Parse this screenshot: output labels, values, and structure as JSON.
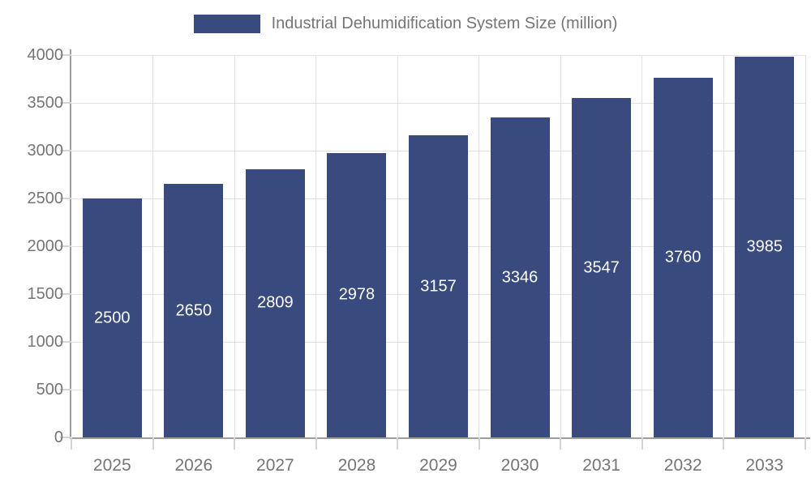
{
  "chart_data": {
    "type": "bar",
    "title": "Industrial Dehumidification System Size (million)",
    "legend_label": "Industrial Dehumidification System Size (million)",
    "legend_position": "top",
    "categories": [
      "2025",
      "2026",
      "2027",
      "2028",
      "2029",
      "2030",
      "2031",
      "2032",
      "2033"
    ],
    "values": [
      2500,
      2650,
      2809,
      2978,
      3157,
      3346,
      3547,
      3760,
      3985
    ],
    "xlabel": "",
    "ylabel": "",
    "ylim": [
      0,
      4000
    ],
    "yticks": [
      0,
      500,
      1000,
      1500,
      2000,
      2500,
      3000,
      3500,
      4000
    ],
    "grid": true,
    "value_labels": "centered-in-bar",
    "colors": {
      "bar": "#394A7E",
      "value_label": "#FFFFFF",
      "axis_line": "#9E9E9E",
      "grid_line": "#E2E2E2",
      "tick_mark": "#D4D4D4",
      "axis_text": "#757575",
      "legend_text": "#757575",
      "background": "#FFFFFF"
    }
  }
}
